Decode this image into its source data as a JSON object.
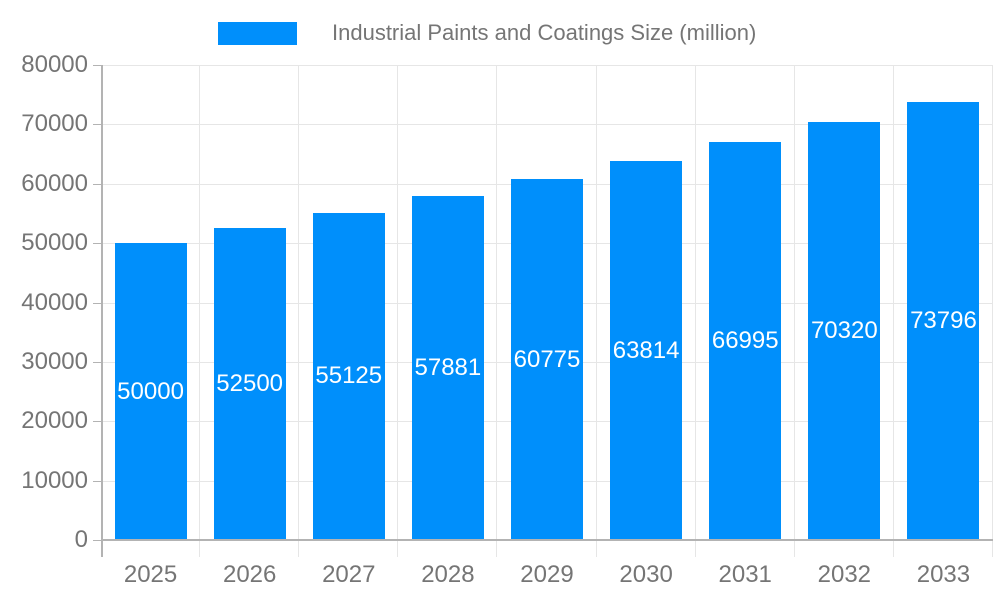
{
  "legend": {
    "label": "Industrial Paints and Coatings Size (million)",
    "swatch_color": "#008FFB"
  },
  "chart_data": {
    "type": "bar",
    "title": "Industrial Paints and Coatings Size (million)",
    "categories": [
      "2025",
      "2026",
      "2027",
      "2028",
      "2029",
      "2030",
      "2031",
      "2032",
      "2033"
    ],
    "values": [
      50000,
      52500,
      55125,
      57881,
      60775,
      63814,
      66995,
      70320,
      73796
    ],
    "xlabel": "",
    "ylabel": "",
    "ylim": [
      0,
      80000
    ],
    "ytick_step": 10000,
    "ytick_labels": [
      "0",
      "10000",
      "20000",
      "30000",
      "40000",
      "50000",
      "60000",
      "70000",
      "80000"
    ],
    "grid": true,
    "legend_position": "top",
    "value_labels": "inside-center",
    "bar_color": "#008FFB",
    "value_label_color": "#FFFFFF",
    "axis_text_color": "#757575",
    "gridline_color": "#E6E6E6",
    "axis_line_color": "#B3B3B3",
    "background_color": "#FFFFFF"
  }
}
